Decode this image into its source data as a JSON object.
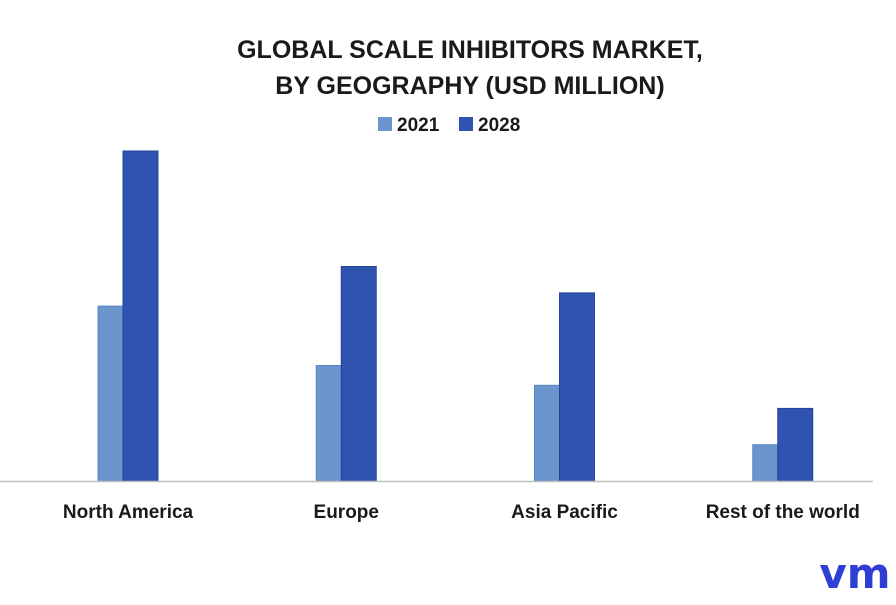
{
  "chart_data": {
    "type": "bar",
    "title": [
      "GLOBAL SCALE INHIBITORS MARKET,",
      "BY GEOGRAPHY (USD MILLION)"
    ],
    "categories": [
      "North America",
      "Europe",
      "Asia Pacific",
      "Rest of the world"
    ],
    "series": [
      {
        "name": "2021",
        "color": "#6b96cd",
        "values": [
          53,
          35,
          29,
          11
        ]
      },
      {
        "name": "2028",
        "color": "#2e54b0",
        "values": [
          100,
          65,
          57,
          22
        ]
      }
    ],
    "ylim": [
      0,
      100
    ],
    "grid": false,
    "legend": "top-center",
    "axis_color": "#bfbfbf"
  },
  "logo": {
    "text": "vm",
    "color": "#2f3fd6"
  }
}
